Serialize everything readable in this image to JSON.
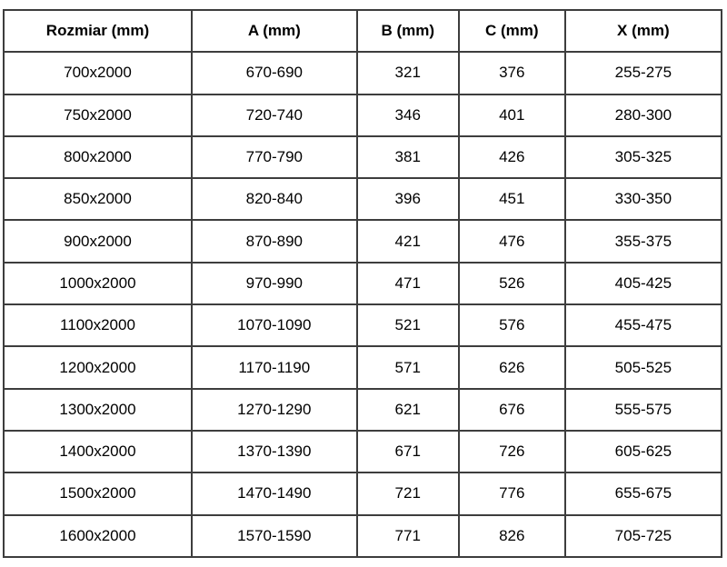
{
  "table": {
    "columns": [
      "Rozmiar (mm)",
      "A (mm)",
      "B (mm)",
      "C (mm)",
      "X (mm)"
    ],
    "rows": [
      [
        "700x2000",
        "670-690",
        "321",
        "376",
        "255-275"
      ],
      [
        "750x2000",
        "720-740",
        "346",
        "401",
        "280-300"
      ],
      [
        "800x2000",
        "770-790",
        "381",
        "426",
        "305-325"
      ],
      [
        "850x2000",
        "820-840",
        "396",
        "451",
        "330-350"
      ],
      [
        "900x2000",
        "870-890",
        "421",
        "476",
        "355-375"
      ],
      [
        "1000x2000",
        "970-990",
        "471",
        "526",
        "405-425"
      ],
      [
        "1100x2000",
        "1070-1090",
        "521",
        "576",
        "455-475"
      ],
      [
        "1200x2000",
        "1170-1190",
        "571",
        "626",
        "505-525"
      ],
      [
        "1300x2000",
        "1270-1290",
        "621",
        "676",
        "555-575"
      ],
      [
        "1400x2000",
        "1370-1390",
        "671",
        "726",
        "605-625"
      ],
      [
        "1500x2000",
        "1470-1490",
        "721",
        "776",
        "655-675"
      ],
      [
        "1600x2000",
        "1570-1590",
        "771",
        "826",
        "705-725"
      ]
    ]
  },
  "chart_data": {
    "type": "table",
    "title": "",
    "columns": [
      "Rozmiar (mm)",
      "A (mm)",
      "B (mm)",
      "C (mm)",
      "X (mm)"
    ],
    "rows": [
      [
        "700x2000",
        "670-690",
        "321",
        "376",
        "255-275"
      ],
      [
        "750x2000",
        "720-740",
        "346",
        "401",
        "280-300"
      ],
      [
        "800x2000",
        "770-790",
        "381",
        "426",
        "305-325"
      ],
      [
        "850x2000",
        "820-840",
        "396",
        "451",
        "330-350"
      ],
      [
        "900x2000",
        "870-890",
        "421",
        "476",
        "355-375"
      ],
      [
        "1000x2000",
        "970-990",
        "471",
        "526",
        "405-425"
      ],
      [
        "1100x2000",
        "1070-1090",
        "521",
        "576",
        "455-475"
      ],
      [
        "1200x2000",
        "1170-1190",
        "571",
        "626",
        "505-525"
      ],
      [
        "1300x2000",
        "1270-1290",
        "621",
        "676",
        "555-575"
      ],
      [
        "1400x2000",
        "1370-1390",
        "671",
        "726",
        "605-625"
      ],
      [
        "1500x2000",
        "1470-1490",
        "721",
        "776",
        "655-675"
      ],
      [
        "1600x2000",
        "1570-1590",
        "771",
        "826",
        "705-725"
      ]
    ]
  },
  "colors": {
    "border": "#3d3d3d",
    "text": "#000000",
    "background": "#ffffff"
  }
}
